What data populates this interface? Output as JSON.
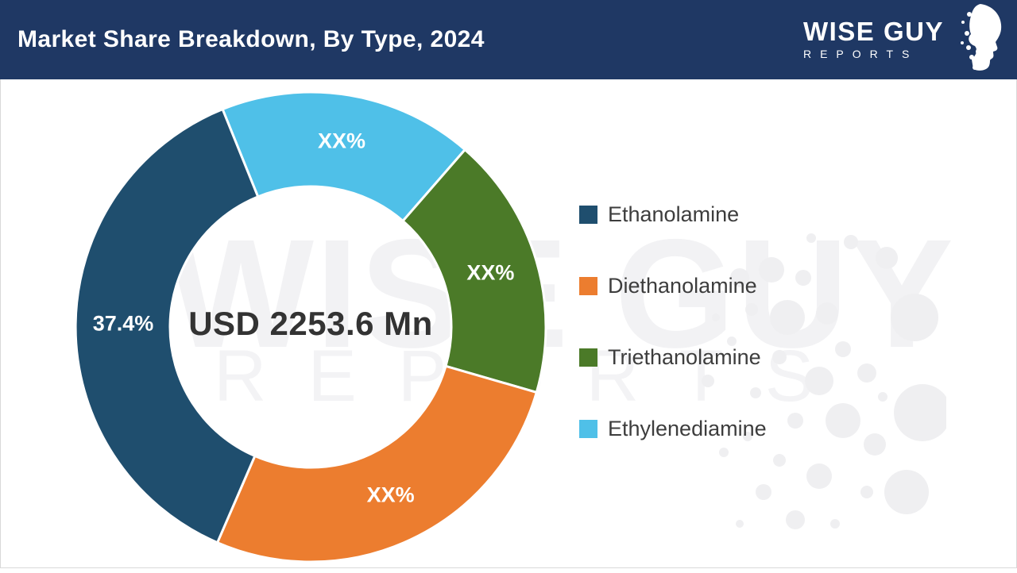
{
  "header": {
    "title": "Market Share Breakdown, By Type, 2024",
    "logo": {
      "line1": "WISE GUY",
      "line2": "REPORTS"
    }
  },
  "watermark": {
    "line1": "WISE GUY",
    "line2": "REPORTS"
  },
  "chart_data": {
    "type": "pie",
    "subtype": "donut",
    "title": "Market Share Breakdown, By Type, 2024",
    "center_label": "USD 2253.6 Mn",
    "legend_position": "right",
    "start_angle_deg_clockwise_from_top": -22,
    "slices": [
      {
        "name": "Ethanolamine",
        "label": "37.4%",
        "value": 37.4,
        "color": "#1f4e6e"
      },
      {
        "name": "Diethanolamine",
        "label": "XX%",
        "value": 27.0,
        "color": "#ec7d2f"
      },
      {
        "name": "Triethanolamine",
        "label": "XX%",
        "value": 18.1,
        "color": "#4b7a28"
      },
      {
        "name": "Ethylenediamine",
        "label": "XX%",
        "value": 17.5,
        "color": "#4fc0e8"
      }
    ]
  }
}
